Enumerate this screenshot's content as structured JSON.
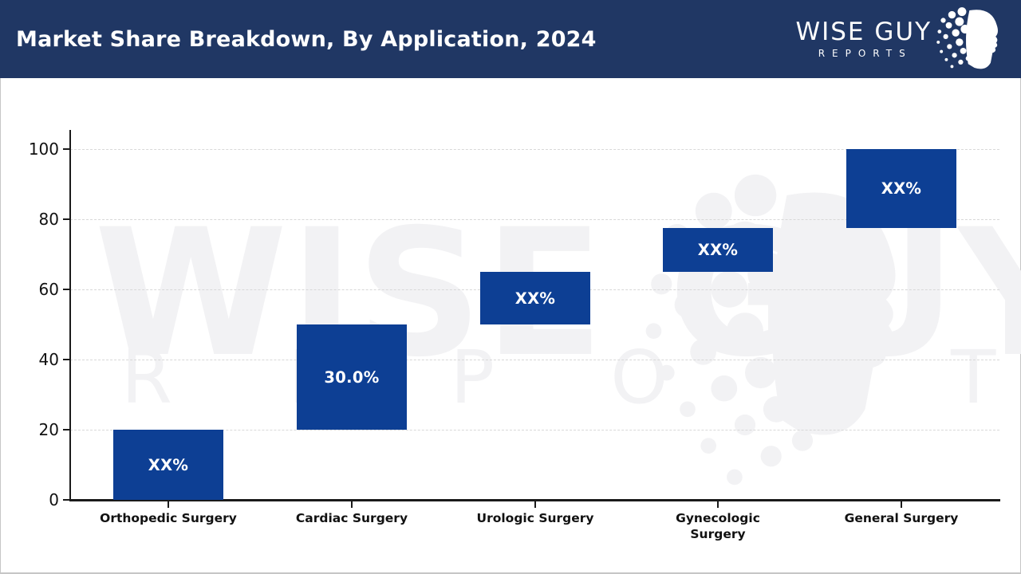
{
  "header": {
    "title": "Market Share Breakdown, By Application, 2024",
    "logo": {
      "line1": "WISE GUY",
      "line2": "REPORTS"
    }
  },
  "watermark": {
    "line1": "WISE GUY",
    "line2": "REPORTS"
  },
  "colors": {
    "header_background": "#203764",
    "bar": "#0d3f94",
    "gridline": "#d8d8d8",
    "axis": "#1a1a1a",
    "bar_label_text": "#ffffff"
  },
  "chart_data": {
    "type": "bar",
    "subtype": "waterfall-floating-segments",
    "title": "Market Share Breakdown, By Application, 2024",
    "categories": [
      "Orthopedic Surgery",
      "Cardiac Surgery",
      "Urologic Surgery",
      "Gynecologic Surgery",
      "General Surgery"
    ],
    "bar_starts": [
      0,
      20,
      50,
      65,
      77.5
    ],
    "bar_ends": [
      20,
      50,
      65,
      77.5,
      100
    ],
    "bar_labels": [
      "XX%",
      "30.0%",
      "XX%",
      "XX%",
      "XX%"
    ],
    "yticks": [
      0,
      20,
      40,
      60,
      80,
      100
    ],
    "ylim": [
      0,
      105.5
    ],
    "xlabel": "",
    "ylabel": "",
    "grid": "horizontal-dashed",
    "legend": "none"
  }
}
